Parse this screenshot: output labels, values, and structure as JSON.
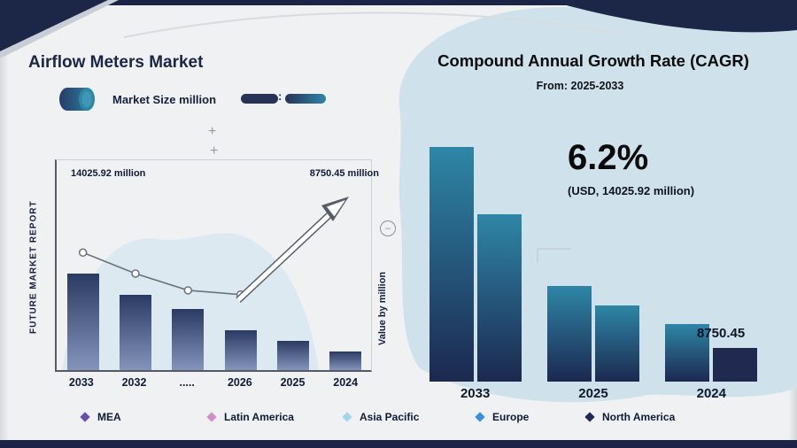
{
  "left_chart": {
    "title": "Airflow Meters Market",
    "legend_label": "Market Size million",
    "top_left_label": "14025.92 million",
    "top_right_label": "8750.45 million",
    "side_label": "FUTURE MARKET REPORT"
  },
  "right_chart": {
    "title": "Compound Annual Growth Rate (CAGR)",
    "subtitle": "From: 2025-2033",
    "cagr_value": "6.2%",
    "cagr_detail": "(USD, 14025.92 million)",
    "ylabel": "Value by million",
    "value_label": "8750.45",
    "x_labels": [
      "2033",
      "2025",
      "2024"
    ]
  },
  "legend": {
    "items": [
      {
        "label": "MEA",
        "color": "#6a4fa8"
      },
      {
        "label": "Latin America",
        "color": "#d48fc6"
      },
      {
        "label": "Asia Pacific",
        "color": "#a5d6e8"
      },
      {
        "label": "Europe",
        "color": "#3b8ed8"
      },
      {
        "label": "North America",
        "color": "#1f2a55"
      }
    ]
  },
  "decor": {
    "plus": "+",
    "minus": "–",
    "colon": ":"
  },
  "colors": {
    "navy": "#1b2444",
    "teal": "#2f86a6",
    "blob_light_blue": "#cfe2ec"
  },
  "chart_data": [
    {
      "type": "bar",
      "title": "Airflow Meters Market",
      "series_label": "Market Size million",
      "categories": [
        "2033",
        "2032",
        ".....",
        "2026",
        "2025",
        "2024"
      ],
      "values_relative_pct": [
        46,
        36,
        29,
        19,
        14,
        9
      ],
      "trend_line_pct": [
        56,
        46,
        38,
        36
      ],
      "annotations": [
        "14025.92 million",
        "8750.45 million"
      ],
      "known_points": {
        "2033": "14025.92 million",
        "2024": "8750.45 million"
      },
      "xlabel": "",
      "ylabel": "FUTURE MARKET REPORT",
      "grid": false,
      "legend_position": "top-left",
      "bar_top_color": "#2b3a63",
      "bar_bottom_color": "#8494bb"
    },
    {
      "type": "bar",
      "title": "Compound Annual Growth Rate (CAGR)",
      "subtitle": "From: 2025-2033",
      "cagr": "6.2%",
      "cagr_detail": "(USD, 14025.92 million)",
      "categories": [
        "2033",
        "2025",
        "2024"
      ],
      "groups": [
        {
          "label": "2033",
          "bars": [
            {
              "pct": 98
            },
            {
              "pct": 70
            }
          ]
        },
        {
          "label": "2025",
          "bars": [
            {
              "pct": 40
            },
            {
              "pct": 32
            }
          ]
        },
        {
          "label": "2024",
          "bars": [
            {
              "pct": 24
            },
            {
              "pct": 14,
              "dark": true
            }
          ]
        }
      ],
      "annotation": "8750.45",
      "xlabel": "",
      "ylabel": "Value by million",
      "grid": false,
      "bar_top_color": "#2e86a6",
      "bar_bottom_color": "#1c2850",
      "dark_bar_color": "#20294f"
    }
  ]
}
